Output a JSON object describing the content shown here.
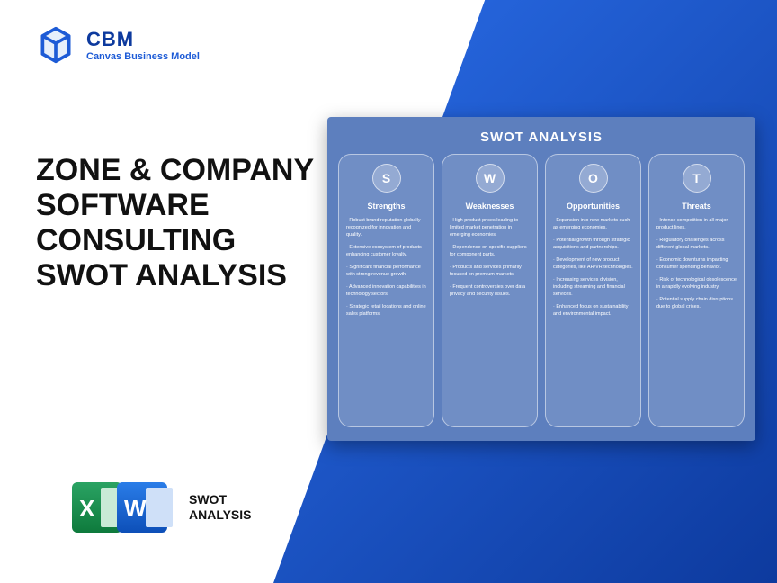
{
  "colors": {
    "brand_blue": "#0d3a9e",
    "accent_blue": "#1d5bd6",
    "gradient_start": "#2a6de8",
    "gradient_end": "#0d3a9e",
    "panel_bg": "#5d7fbe",
    "excel_green": "#0e7a3c",
    "word_blue": "#0d4fb8",
    "text_dark": "#111111",
    "white": "#ffffff"
  },
  "logo": {
    "title": "CBM",
    "subtitle": "Canvas Business Model"
  },
  "headline": "ZONE & COMPANY SOFTWARE CONSULTING SWOT ANALYSIS",
  "footer": {
    "label_line1": "SWOT",
    "label_line2": "ANALYSIS",
    "excel_letter": "X",
    "word_letter": "W"
  },
  "panel": {
    "title": "SWOT ANALYSIS",
    "columns": [
      {
        "letter": "S",
        "heading": "Strengths",
        "items": [
          "· Robust brand reputation globally recognized for innovation and quality.",
          "· Extensive ecosystem of products enhancing customer loyalty.",
          "· Significant financial performance with strong revenue growth.",
          "· Advanced innovation capabilities in technology sectors.",
          "· Strategic retail locations and online sales platforms."
        ]
      },
      {
        "letter": "W",
        "heading": "Weaknesses",
        "items": [
          "· High product prices leading to limited market penetration in emerging economies.",
          "· Dependence on specific suppliers for component parts.",
          "· Products and services primarily focused on premium markets.",
          "· Frequent controversies over data privacy and security issues."
        ]
      },
      {
        "letter": "O",
        "heading": "Opportunities",
        "items": [
          "· Expansion into new markets such as emerging economies.",
          "· Potential growth through strategic acquisitions and partnerships.",
          "· Development of new product categories, like AR/VR technologies.",
          "· Increasing services division, including streaming and financial services.",
          "· Enhanced focus on sustainability and environmental impact."
        ]
      },
      {
        "letter": "T",
        "heading": "Threats",
        "items": [
          "· Intense competition in all major product lines.",
          "· Regulatory challenges across different global markets.",
          "· Economic downturns impacting consumer spending behavior.",
          "· Risk of technological obsolescence in a rapidly evolving industry.",
          "· Potential supply chain disruptions due to global crises."
        ]
      }
    ]
  }
}
